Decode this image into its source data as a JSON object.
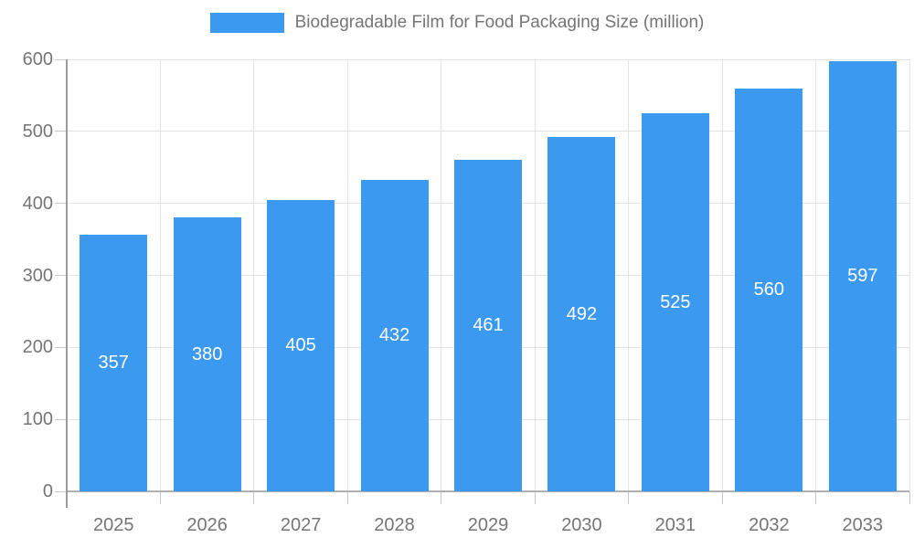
{
  "legend": {
    "label": "Biodegradable Film for Food Packaging Size (million)",
    "swatch_color": "#3C99F0"
  },
  "chart_data": {
    "type": "bar",
    "title": "Biodegradable Film for Food Packaging Size (million)",
    "categories": [
      "2025",
      "2026",
      "2027",
      "2028",
      "2029",
      "2030",
      "2031",
      "2032",
      "2033"
    ],
    "series": [
      {
        "name": "Biodegradable Film for Food Packaging Size (million)",
        "values": [
          357,
          380,
          405,
          432,
          461,
          492,
          525,
          560,
          597
        ]
      }
    ],
    "xlabel": "",
    "ylabel": "",
    "ylim": [
      0,
      600
    ],
    "yticks": [
      0,
      100,
      200,
      300,
      400,
      500,
      600
    ],
    "grid": true,
    "legend_position": "top",
    "value_labels": "inside-center",
    "colors": {
      "bar": "#3C99F0",
      "value_label": "#ffffff",
      "axis_text": "#757575",
      "gridline": "#e3e3e3",
      "baseline": "#b0b0b0",
      "y_axis_line": "#9b9b9b",
      "tick": "#c9c9c9"
    }
  }
}
